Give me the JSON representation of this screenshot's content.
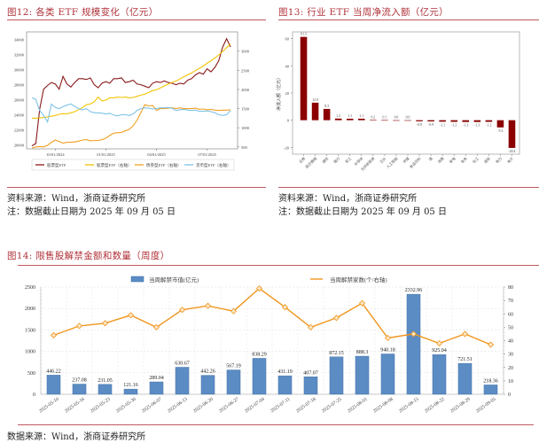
{
  "figure12": {
    "title": "图12:  各类 ETF 规模变化（亿元）",
    "source": "资料来源：Wind，浙商证券研究所",
    "note": "注：数据截止日期为 2025 年 09 月 05 日"
  },
  "figure13": {
    "title": "图13:  行业 ETF 当周净流入额（亿元）",
    "source": "资料来源：Wind，浙商证券研究所",
    "note": "注：数据截止日期为 2025 年 09 月 05 日"
  },
  "figure14": {
    "title": "图14:  限售股解禁金额和数量（周度）",
    "source": "数据来源：Wind，浙商证券研究所"
  },
  "chart_data": [
    {
      "id": "etf-scale",
      "type": "line",
      "title": "各类 ETF 规模变化（亿元）",
      "x_ticks": [
        "10/01/2024",
        "01/01/2025",
        "04/01/2025",
        "07/01/2025"
      ],
      "y_left": {
        "ticks": [
          20000,
          22000,
          24000,
          26000,
          28000,
          30000,
          32000,
          34000
        ],
        "range": [
          19500,
          35000
        ]
      },
      "y_right": {
        "ticks": [
          500,
          1000,
          1500,
          2000,
          2500,
          3000
        ],
        "range": [
          450,
          3500
        ]
      },
      "legend_position": "bottom",
      "series": [
        {
          "name": "股票型ETF",
          "axis": "left",
          "color": "#8b1a1a",
          "values": [
            19900,
            20200,
            24800,
            27400,
            27900,
            28300,
            28100,
            27400,
            29100,
            28100,
            27700,
            28300,
            28800,
            28800,
            28700,
            28900,
            28000,
            27600,
            28200,
            28400,
            28200,
            28800,
            28800,
            28900,
            28300,
            28400,
            28600,
            28100,
            28000,
            27800,
            27600,
            28200,
            28400,
            28300,
            28500,
            28300,
            28200,
            28000,
            28200,
            28100,
            28600,
            28800,
            29300,
            29600,
            29400,
            30100,
            29700,
            30300,
            31200,
            33000,
            34100,
            33000
          ]
        },
        {
          "name": "股票型ETF（右轴）",
          "axis": "right",
          "color": "#f2c400",
          "values": [
            1250,
            1250,
            1255,
            1270,
            1280,
            1300,
            1320,
            1350,
            1370,
            1360,
            1390,
            1420,
            1470,
            1530,
            1600,
            1620,
            1680,
            1800,
            1700,
            1720,
            1780,
            1780,
            1800,
            1790,
            1800,
            1780,
            1790,
            1820,
            1850,
            1880,
            1920,
            1970,
            1990,
            2040,
            2090,
            2140,
            2180,
            2220,
            2270,
            2330,
            2380,
            2430,
            2490,
            2550,
            2610,
            2680,
            2750,
            2820,
            2900,
            2990,
            3090,
            3180
          ]
        },
        {
          "name": "债券型ETF（右轴）",
          "axis": "right",
          "color": "#f0a020",
          "values": [
            470,
            500,
            510,
            500,
            540,
            620,
            680,
            640,
            600,
            620,
            620,
            630,
            650,
            680,
            690,
            660,
            670,
            670,
            690,
            730,
            800,
            860,
            870,
            880,
            920,
            960,
            1050,
            1200,
            1400,
            1600,
            1570,
            1580,
            1450,
            1500,
            1500,
            1510,
            1520,
            1500,
            1520,
            1500,
            1500,
            1500,
            1510,
            1480,
            1490,
            1470,
            1480,
            1460,
            1450,
            1460,
            1460,
            1470
          ]
        },
        {
          "name": "货币型ETF（右轴）",
          "axis": "right",
          "color": "#7ec3e6",
          "values": [
            1780,
            1740,
            1450,
            1320,
            1150,
            1620,
            1530,
            1500,
            1550,
            1590,
            1620,
            1560,
            1500,
            1470,
            1500,
            1420,
            1390,
            1390,
            1380,
            1360,
            1380,
            1330,
            1310,
            1340,
            1340,
            1320,
            1360,
            1450,
            1500,
            1520,
            1510,
            1490,
            1500,
            1520,
            1520,
            1530,
            1510,
            1450,
            1470,
            1480,
            1460,
            1450,
            1460,
            1430,
            1430,
            1440,
            1420,
            1390,
            1340,
            1320,
            1340,
            1450
          ]
        }
      ]
    },
    {
      "id": "industry-etf-flow",
      "type": "bar",
      "title": "行业 ETF 当周净流入额（亿元）",
      "ylabel": "净流入额（亿元）",
      "y_ticks": [
        -20,
        0,
        20,
        40,
        60
      ],
      "ylim": [
        -25,
        65
      ],
      "categories": [
        "证券",
        "医疗器械",
        "通信",
        "银行",
        "军工",
        "半导体",
        "光伏新能源",
        "芯片",
        "人工智能",
        "传媒",
        "食品饮料",
        "酒",
        "消费",
        "家电",
        "有色",
        "化工",
        "煤炭",
        "电力",
        "电子"
      ],
      "values": [
        61.3,
        12.9,
        8.3,
        1.2,
        1.1,
        1.1,
        0.2,
        0.1,
        0.0,
        0.0,
        -0.8,
        -0.9,
        -1.1,
        -1.2,
        -1.3,
        -1.3,
        -1.2,
        -5.3,
        -20.4
      ],
      "labels": [
        "61.3",
        "12.9",
        "8.3",
        "1.2",
        "1.1",
        "1.1",
        "0.2",
        "0.1",
        "0.0",
        "0.0",
        "-0.8",
        "-0.9",
        "-1.1",
        "-1.2",
        "-1.3",
        "-1.3",
        "-1.2",
        "-5.3",
        "-20.4"
      ],
      "color": "#8b0000"
    },
    {
      "id": "lockup-expiry",
      "type": "bar",
      "categories": [
        "2025-05-10",
        "2025-05-16",
        "2025-05-23",
        "2025-05-30",
        "2025-06-07",
        "2025-06-13",
        "2025-06-20",
        "2025-06-27",
        "2025-07-04",
        "2025-07-11",
        "2025-07-18",
        "2025-07-25",
        "2025-08-01",
        "2025-08-08",
        "2025-08-15",
        "2025-08-22",
        "2025-08-29",
        "2025-09-05"
      ],
      "y_left": {
        "ticks": [
          0,
          500,
          1000,
          1500,
          2000,
          2500
        ],
        "range": [
          0,
          2500
        ]
      },
      "y_right": {
        "ticks": [
          0,
          10,
          20,
          30,
          40,
          50,
          60,
          70,
          80
        ],
        "range": [
          0,
          80
        ]
      },
      "legend_position": "top",
      "series": [
        {
          "name": "当周解禁市值(亿元)",
          "type": "bar",
          "axis": "left",
          "color": "#5b8cc4",
          "values": [
            446.22,
            237.08,
            231.05,
            121.16,
            289.04,
            630.67,
            442.26,
            567.19,
            838.29,
            431.19,
            407.07,
            872.15,
            888.3,
            940.18,
            2332.96,
            925.04,
            721.51,
            218.36
          ],
          "labels": [
            "446.22",
            "237.08",
            "231.05",
            "121.16",
            "289.04",
            "630.67",
            "442.26",
            "567.19",
            "838.29",
            "431.19",
            "407.07",
            "872.15",
            "888.3",
            "940.18",
            "2332.96",
            "925.04",
            "721.51",
            "218.36"
          ]
        },
        {
          "name": "当周解禁家数(个/右轴)",
          "type": "line",
          "axis": "right",
          "color": "#f0961e",
          "values": [
            44,
            51,
            53,
            59,
            50,
            63,
            66,
            62,
            79,
            65,
            50,
            57,
            68,
            42,
            45,
            38,
            45,
            37
          ]
        }
      ]
    }
  ]
}
